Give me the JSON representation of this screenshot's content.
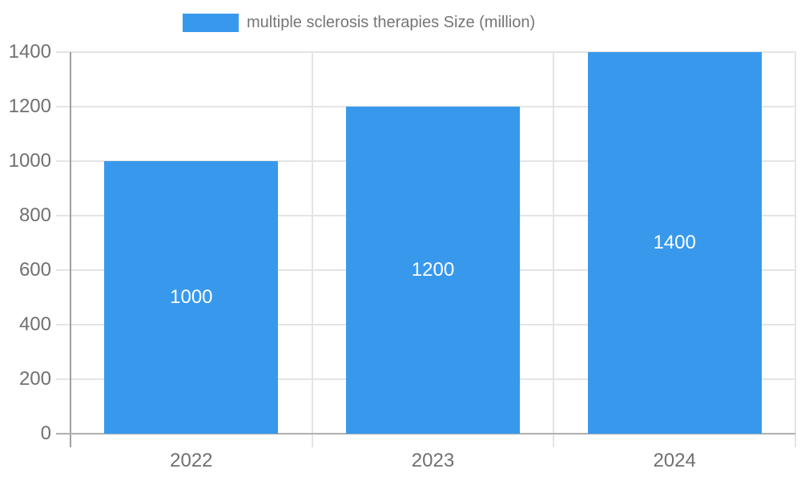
{
  "legend": {
    "label": "multiple sclerosis therapies Size (million)"
  },
  "chart_data": {
    "type": "bar",
    "title": "",
    "categories": [
      "2022",
      "2023",
      "2024"
    ],
    "series": [
      {
        "name": "multiple sclerosis therapies Size (million)",
        "values": [
          1000,
          1200,
          1400
        ]
      }
    ],
    "value_labels": [
      "1000",
      "1200",
      "1400"
    ],
    "xlabel": "",
    "ylabel": "",
    "ylim": [
      0,
      1400
    ],
    "ytick_step": 200,
    "yticks": [
      0,
      200,
      400,
      600,
      800,
      1000,
      1200,
      1400
    ],
    "grid": true,
    "legend_position": "top-center",
    "colors": {
      "bar": "#3899EC",
      "grid": "#e4e4e4",
      "axis": "#9f9f9f",
      "baseline": "#b0b0b0",
      "tick_text": "#707070",
      "legend_text": "#757575",
      "value_text": "#ffffff"
    }
  }
}
